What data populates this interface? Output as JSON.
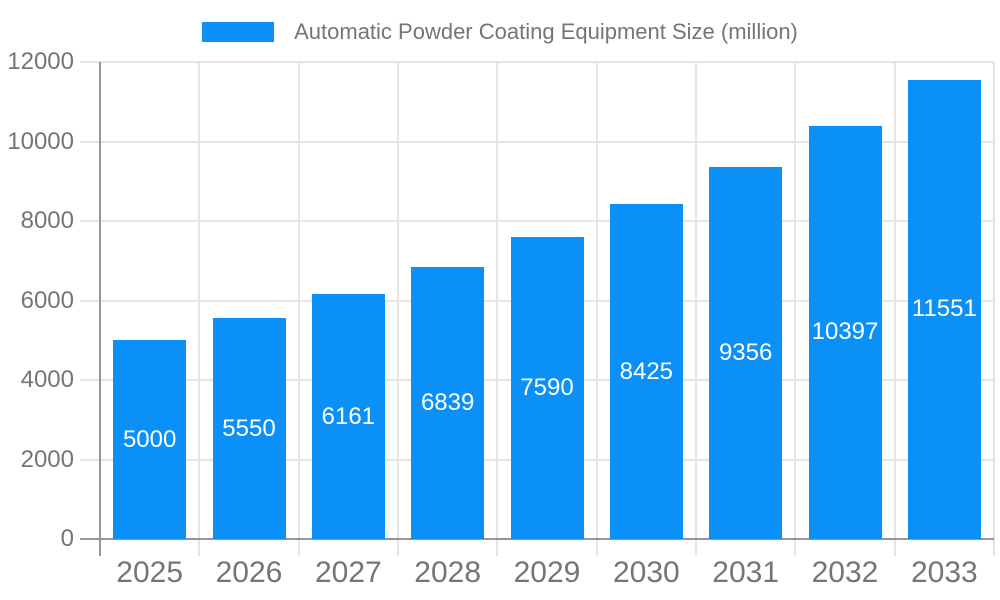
{
  "chart_data": {
    "type": "bar",
    "title": "Automatic Powder Coating Equipment Size (million)",
    "series": [
      {
        "name": "Automatic Powder Coating Equipment Size (million)",
        "values": [
          5000,
          5550,
          6161,
          6839,
          7590,
          8425,
          9356,
          10397,
          11551
        ]
      }
    ],
    "categories": [
      "2025",
      "2026",
      "2027",
      "2028",
      "2029",
      "2030",
      "2031",
      "2032",
      "2033"
    ],
    "values": [
      5000,
      5550,
      6161,
      6839,
      7590,
      8425,
      9356,
      10397,
      11551
    ],
    "xlabel": "",
    "ylabel": "",
    "ylim": [
      0,
      12000
    ],
    "y_ticks": [
      0,
      2000,
      4000,
      6000,
      8000,
      10000,
      12000
    ],
    "grid": true,
    "legend_position": "top",
    "bar_label_position": "inside-middle",
    "bar_color": "#0b90f8",
    "bar_label_color": "#ffffff",
    "axis_color": "#969696",
    "grid_color": "#e5e5e5",
    "tick_label_color": "#757575",
    "legend_text_color": "#757575",
    "background": "#ffffff"
  }
}
